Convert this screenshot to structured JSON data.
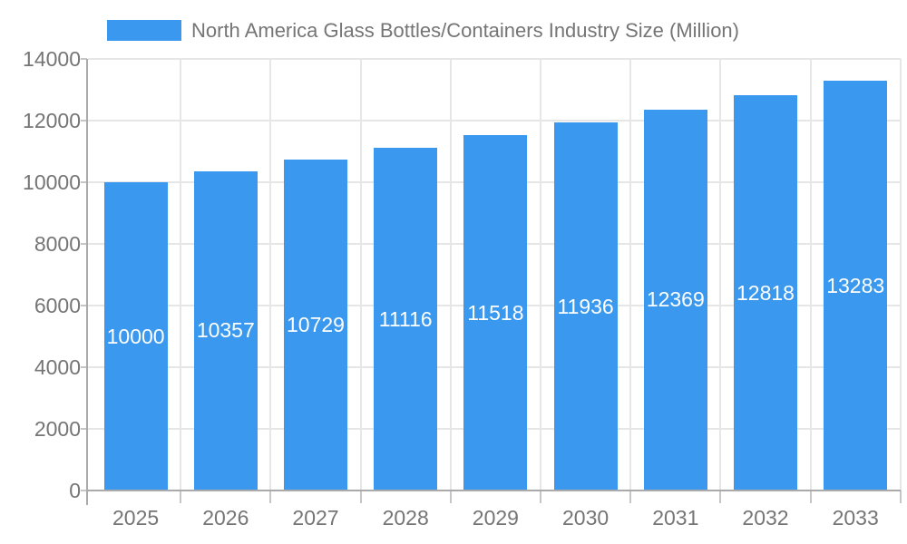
{
  "chart_data": {
    "type": "bar",
    "title": "North America Glass Bottles/Containers Industry Size (Million)",
    "categories": [
      "2025",
      "2026",
      "2027",
      "2028",
      "2029",
      "2030",
      "2031",
      "2032",
      "2033"
    ],
    "values": [
      10000,
      10357,
      10729,
      11116,
      11518,
      11936,
      12369,
      12818,
      13283
    ],
    "yticks": [
      0,
      2000,
      4000,
      6000,
      8000,
      10000,
      12000,
      14000
    ],
    "ylim": [
      0,
      14000
    ],
    "xlabel": "",
    "ylabel": "",
    "grid": true,
    "legend_position": "top-left",
    "colors": {
      "bar": "#3A99EE",
      "value_label": "#FFFFFF",
      "axis_text": "#757575",
      "gridline": "#E6E6E6",
      "tick": "#C6C6C6",
      "axis_line": "#AAAAAA",
      "background": "#FFFFFF"
    }
  }
}
